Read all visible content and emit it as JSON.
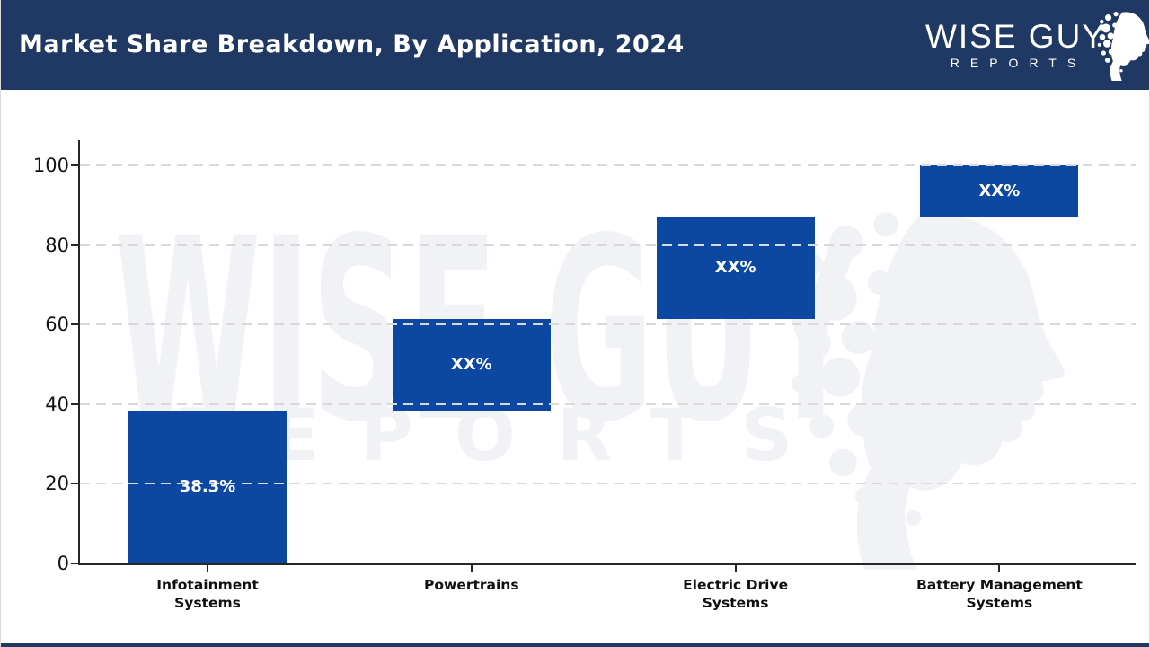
{
  "header": {
    "title": "Market Share Breakdown, By Application, 2024",
    "bg_color": "#1f3864",
    "brand": {
      "name": "WISE GUY",
      "tagline": "REPORTS",
      "head_icon": "head-profile-dots-icon"
    }
  },
  "watermark": {
    "line1": "WISE GUY",
    "line2": "REPORTS",
    "head_icon": "head-profile-dots-icon",
    "color": "#f1f2f5"
  },
  "chart_data": {
    "type": "bar",
    "subtype": "waterfall",
    "title": "Market Share Breakdown, By Application, 2024",
    "xlabel": "",
    "ylabel": "",
    "ylim": [
      0,
      100
    ],
    "yticks": [
      0,
      20,
      40,
      60,
      80,
      100
    ],
    "grid": {
      "axis": "y",
      "style": "dashed",
      "color": "#d9d9d9"
    },
    "bar_color": "#0c47a1",
    "bar_label_color": "#ffffff",
    "axis_color": "#262626",
    "categories": [
      "Infotainment Systems",
      "Powertrains",
      "Electric Drive Systems",
      "Battery Management Systems"
    ],
    "segments": [
      {
        "category": "Infotainment Systems",
        "category_lines": [
          "Infotainment",
          "Systems"
        ],
        "start": 0,
        "end": 38.3,
        "label": "38.3%"
      },
      {
        "category": "Powertrains",
        "category_lines": [
          "Powertrains"
        ],
        "start": 38.3,
        "end": 61.5,
        "label": "XX%"
      },
      {
        "category": "Electric Drive Systems",
        "category_lines": [
          "Electric Drive",
          "Systems"
        ],
        "start": 61.5,
        "end": 86.8,
        "label": "XX%"
      },
      {
        "category": "Battery Management Systems",
        "category_lines": [
          "Battery Management",
          "Systems"
        ],
        "start": 86.8,
        "end": 100,
        "label": "XX%"
      }
    ]
  },
  "footer": {
    "bg_color": "#1f3864"
  }
}
